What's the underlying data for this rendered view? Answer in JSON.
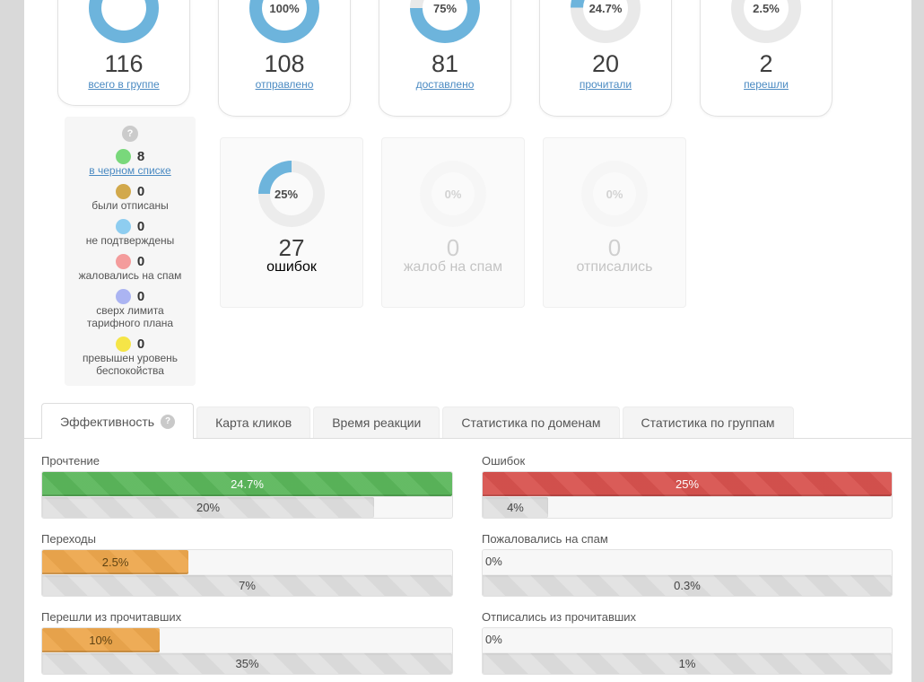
{
  "icons": {
    "help": "?"
  },
  "donut": {
    "blue": "#6db4dc",
    "gray": "#e9e9e9"
  },
  "summary_cards": [
    {
      "id": "total-in-group",
      "percent": "",
      "pct": 100,
      "value": "116",
      "label": "всего в группе"
    },
    {
      "id": "sent",
      "percent": "100%",
      "pct": 100,
      "value": "108",
      "label": "отправлено"
    },
    {
      "id": "delivered",
      "percent": "75%",
      "pct": 75,
      "value": "81",
      "label": "доставлено"
    },
    {
      "id": "read",
      "percent": "24.7%",
      "pct": 24.7,
      "value": "20",
      "label": "прочитали"
    },
    {
      "id": "clicked",
      "percent": "2.5%",
      "pct": 2.5,
      "value": "2",
      "label": "перешли"
    }
  ],
  "legend": {
    "items": [
      {
        "id": "blacklist",
        "count": "8",
        "label": "в черном списке",
        "color": "#79d87b",
        "link": true
      },
      {
        "id": "unsubscribed-before",
        "count": "0",
        "label": "были отписаны",
        "color": "#d2a94c",
        "link": false
      },
      {
        "id": "unconfirmed",
        "count": "0",
        "label": "не подтверждены",
        "color": "#8ecdf0",
        "link": false
      },
      {
        "id": "spam-complained",
        "count": "0",
        "label": "жаловались на спам",
        "color": "#f49c9c",
        "link": false
      },
      {
        "id": "over-plan-limit",
        "count": "0",
        "label": "сверх лимита тарифного плана",
        "color": "#abb4f2",
        "link": false
      },
      {
        "id": "anxiety-exceeded",
        "count": "0",
        "label": "превышен уровень беспокойства",
        "color": "#f5e547",
        "link": false
      }
    ]
  },
  "secondary_cards": [
    {
      "id": "errors",
      "percent": "25%",
      "pct": 25,
      "value": "27",
      "label": "ошибок",
      "link": true,
      "faded": false
    },
    {
      "id": "spam-complaints",
      "percent": "0%",
      "pct": 0,
      "value": "0",
      "label": "жалоб на спам",
      "link": false,
      "faded": true
    },
    {
      "id": "unsubscribed",
      "percent": "0%",
      "pct": 0,
      "value": "0",
      "label": "отписались",
      "link": false,
      "faded": true
    }
  ],
  "tabs": [
    {
      "id": "effectiveness",
      "label": "Эффективность",
      "active": true,
      "help": true
    },
    {
      "id": "click-map",
      "label": "Карта кликов",
      "active": false,
      "help": false
    },
    {
      "id": "reaction-time",
      "label": "Время реакции",
      "active": false,
      "help": false
    },
    {
      "id": "domain-stats",
      "label": "Статистика по доменам",
      "active": false,
      "help": false
    },
    {
      "id": "group-stats",
      "label": "Статистика по группам",
      "active": false,
      "help": false
    }
  ],
  "bars_left": [
    {
      "id": "read-rate",
      "title": "Прочтение",
      "value": 24.7,
      "value_label": "24.7%",
      "avg": 20,
      "avg_label": "20%",
      "fill": "#5bb75b",
      "text": "#ffffff"
    },
    {
      "id": "click-rate",
      "title": "Переходы",
      "value": 2.5,
      "value_label": "2.5%",
      "avg": 7,
      "avg_label": "7%",
      "fill": "#eda74d",
      "text": "#5f4313"
    },
    {
      "id": "clicks-from-reads",
      "title": "Перешли из прочитавших",
      "value": 10,
      "value_label": "10%",
      "avg": 35,
      "avg_label": "35%",
      "fill": "#eda74d",
      "text": "#5f4313"
    }
  ],
  "bars_right": [
    {
      "id": "errors-rate",
      "title": "Ошибок",
      "value": 25,
      "value_label": "25%",
      "avg": 4,
      "avg_label": "4%",
      "fill": "#d8524e",
      "text": "#ffffff"
    },
    {
      "id": "spam-rate",
      "title": "Пожаловались на спам",
      "value": 0,
      "value_label": "0%",
      "avg": 0.3,
      "avg_label": "0.3%",
      "fill": "#eda74d",
      "text": "#444444"
    },
    {
      "id": "unsub-from-reads",
      "title": "Отписались из прочитавших",
      "value": 0,
      "value_label": "0%",
      "avg": 1,
      "avg_label": "1%",
      "fill": "#eda74d",
      "text": "#444444"
    }
  ]
}
